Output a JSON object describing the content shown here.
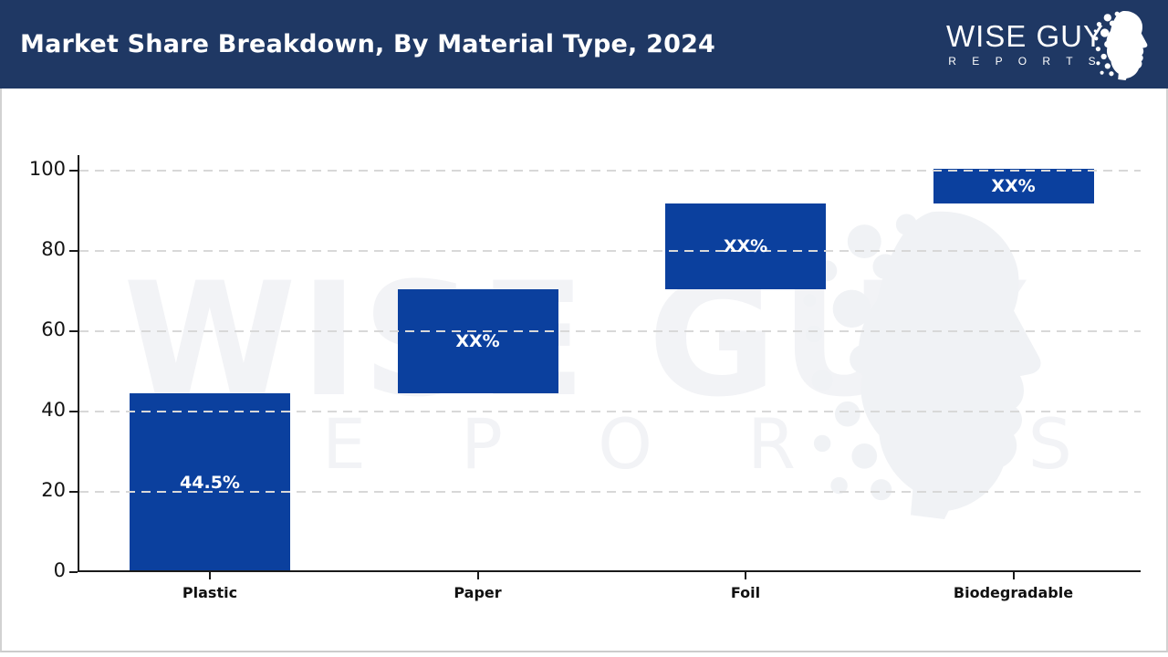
{
  "header": {
    "title": "Market Share Breakdown, By Material Type, 2024",
    "logo": {
      "line1": "WISE GUY",
      "line2": "R E P O R T S"
    }
  },
  "watermark": {
    "line1": "WISE GUY",
    "line2": "R E P O R T S"
  },
  "colors": {
    "header_bg": "#1f3864",
    "bar": "#0b409e",
    "gridline": "#d8d8d8",
    "axis": "#1a1a1a",
    "watermark": "#f2f3f6",
    "bar_label": "#ffffff"
  },
  "chart_data": {
    "type": "bar",
    "subtype": "waterfall",
    "title": "Market Share Breakdown, By Material Type, 2024",
    "xlabel": "",
    "ylabel": "",
    "categories": [
      "Plastic",
      "Paper",
      "Foil",
      "Biodegradable"
    ],
    "bars": [
      {
        "category": "Plastic",
        "start": 0,
        "end": 44.5,
        "value": 44.5,
        "label": "44.5%"
      },
      {
        "category": "Paper",
        "start": 44.5,
        "end": 70.5,
        "value": 26.0,
        "label": "XX%"
      },
      {
        "category": "Foil",
        "start": 70.5,
        "end": 91.8,
        "value": 21.3,
        "label": "XX%"
      },
      {
        "category": "Biodegradable",
        "start": 91.8,
        "end": 100.5,
        "value": 8.7,
        "label": "XX%"
      }
    ],
    "yticks": [
      0,
      20,
      40,
      60,
      80,
      100
    ],
    "ylim": [
      0,
      104
    ],
    "grid": "horizontal dashed",
    "legend": "none"
  }
}
